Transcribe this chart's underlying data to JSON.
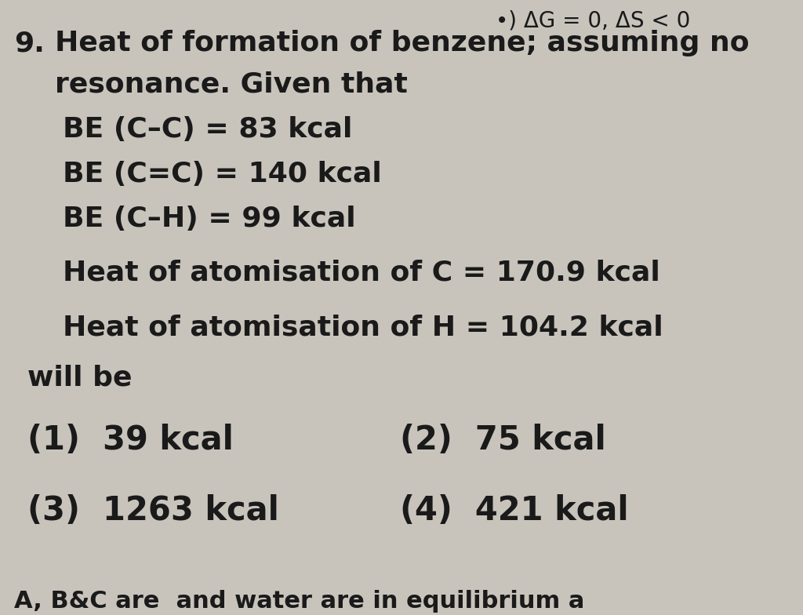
{
  "background_color": "#c8c4bc",
  "text_color": "#1a1a1a",
  "title_top": "(•) ΔG = 0, ΔS < 0",
  "question_number": "9.",
  "question_line1": "Heat of formation of benzene; assuming no",
  "question_line2": "resonance. Given that",
  "be_cc": "BE (C–C) = 83 kcal",
  "be_double_cc": "BE (C=C) = 140 kcal",
  "be_ch": "BE (C–H) = 99 kcal",
  "atomisation_c": "Heat of atomisation of C = 170.9 kcal",
  "atomisation_h": "Heat of atomisation of H = 104.2 kcal",
  "will_be": "will be",
  "opt1": "(1)  39 kcal",
  "opt2": "(2)  75 kcal",
  "opt3": "(3)  1263 kcal",
  "opt4": "(4)  421 kcal",
  "bottom_text": "A, B&C are  and water are in equilibrium a"
}
